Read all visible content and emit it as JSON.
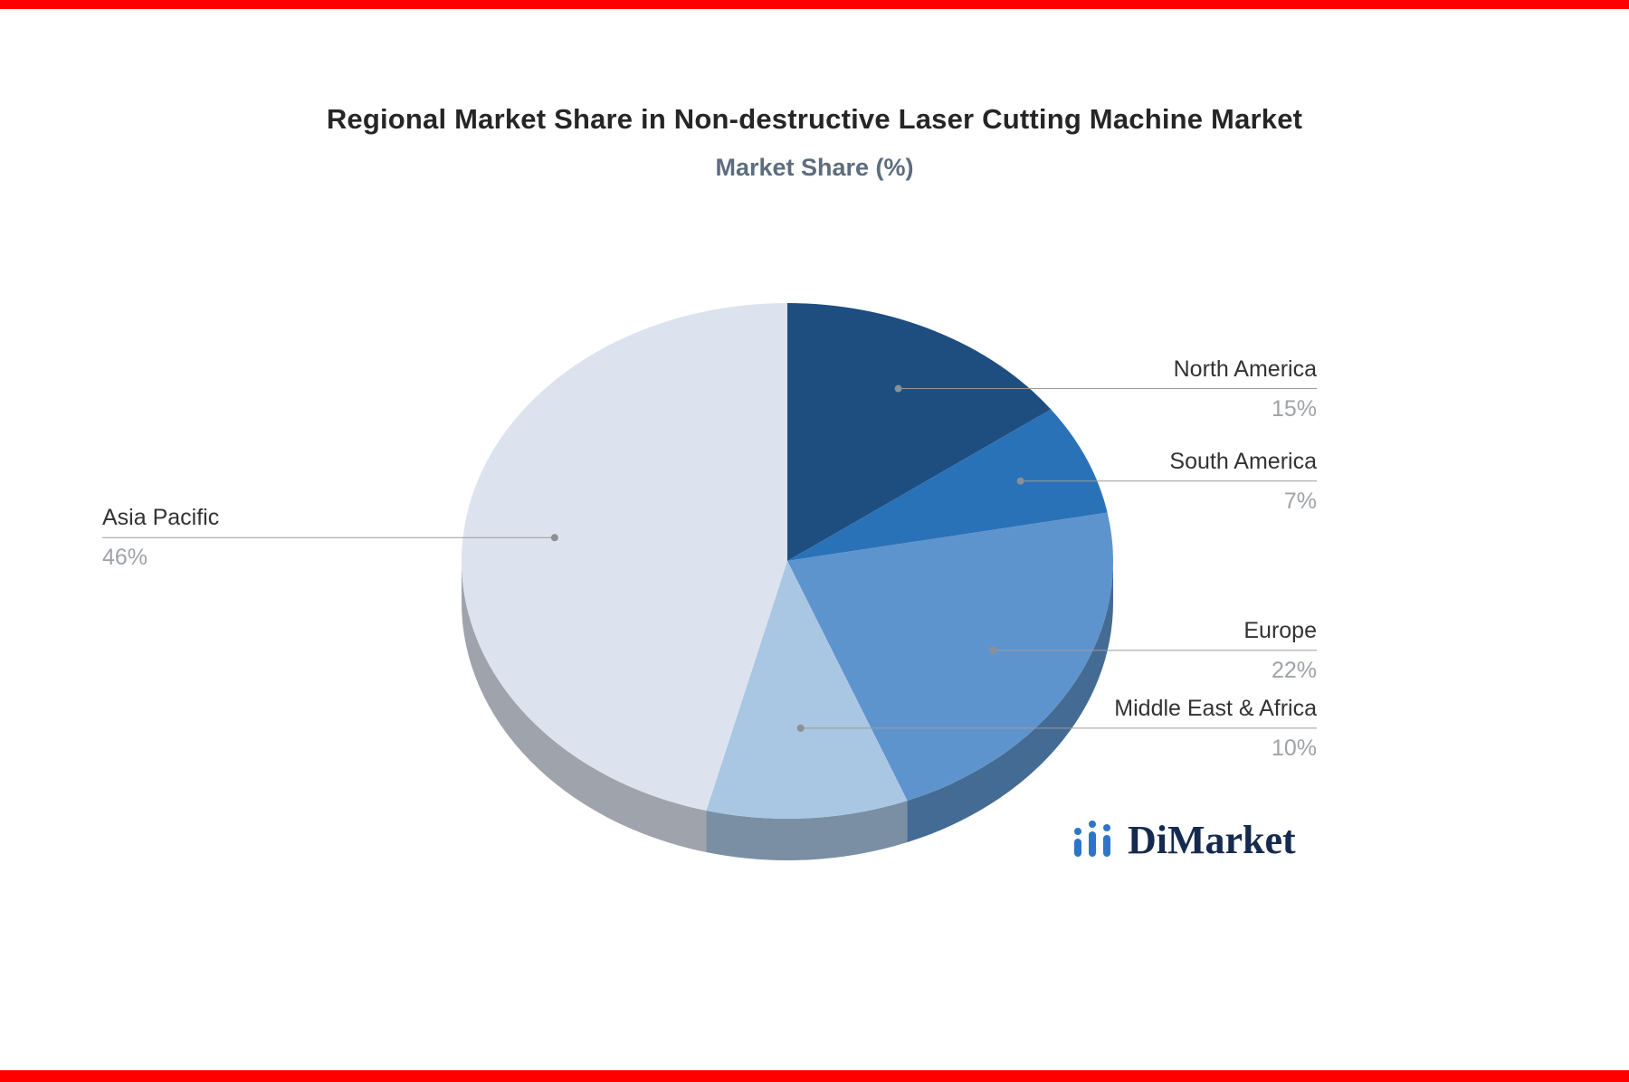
{
  "page": {
    "background": "#ffffff",
    "accent_bar_color": "#fe0000"
  },
  "chart_data": {
    "type": "pie",
    "title": "Regional Market Share in Non-destructive Laser Cutting Machine Market",
    "subtitle": "Market Share (%)",
    "labels": [
      "North America",
      "South America",
      "Europe",
      "Middle East & Africa",
      "Asia Pacific"
    ],
    "values": [
      15,
      7,
      22,
      10,
      46
    ],
    "percent_labels": [
      "15%",
      "7%",
      "22%",
      "10%",
      "46%"
    ],
    "colors": [
      "#1d4e7f",
      "#2a72b8",
      "#5e94cd",
      "#a9c7e2",
      "#dde3ee"
    ],
    "style": "3d-pie",
    "start_position": "top",
    "direction": "clockwise",
    "label_color": "#333333",
    "percent_color": "#9ea3a8",
    "leader_line_color": "#9a9a9a",
    "leader_dot_color": "#8b9095",
    "legend_position": "callout-labels"
  },
  "branding": {
    "logo_text": "DiMarket",
    "logo_text_color": "#152a4e",
    "icon_name": "bar-chart-icon",
    "icon_color": "#2e75c9"
  }
}
